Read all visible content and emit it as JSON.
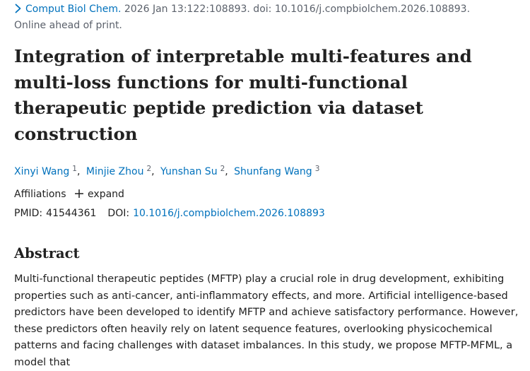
{
  "citation": {
    "journal": "Comput Biol Chem.",
    "details": " 2026 Jan 13:122:108893. doi: 10.1016/j.compbiolchem.2026.108893."
  },
  "status": "Online ahead of print.",
  "title": "Integration of interpretable multi-features and multi-loss functions for multi-functional therapeutic peptide prediction via dataset construction",
  "authors": [
    {
      "name": "Xinyi Wang",
      "aff": "1"
    },
    {
      "name": "Minjie Zhou",
      "aff": "2"
    },
    {
      "name": "Yunshan Su",
      "aff": "2"
    },
    {
      "name": "Shunfang Wang",
      "aff": "3"
    }
  ],
  "author_separator": ",",
  "affiliations": {
    "label": "Affiliations",
    "expand_label": "expand"
  },
  "ids": {
    "pmid_label": "PMID:",
    "pmid": "41544361",
    "doi_label": "DOI:",
    "doi": "10.1016/j.compbiolchem.2026.108893"
  },
  "abstract": {
    "heading": "Abstract",
    "text": "Multi-functional therapeutic peptides (MFTP) play a crucial role in drug development, exhibiting properties such as anti-cancer, anti-inflammatory effects, and more. Artificial intelligence-based predictors have been developed to identify MFTP and achieve satisfactory performance. However, these predictors often heavily rely on latent sequence features, overlooking physicochemical patterns and facing challenges with dataset imbalances. In this study, we propose MFTP-MFML, a model that"
  },
  "colors": {
    "link": "#0071bc",
    "text": "#212121",
    "muted": "#5b616b"
  },
  "icons": {
    "citation": "chevron-right-icon",
    "expand": "plus-icon"
  }
}
